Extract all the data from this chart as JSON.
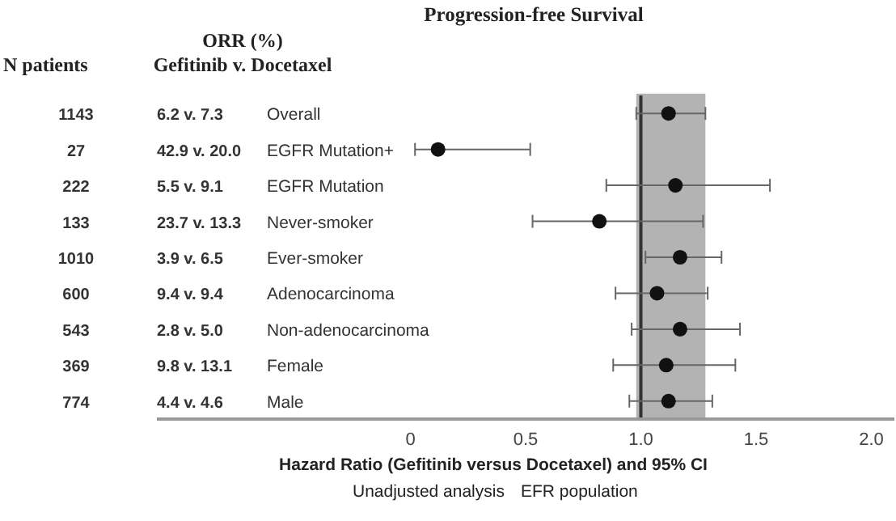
{
  "chart_data": {
    "type": "scatter",
    "orientation": "horizontal",
    "title": "Progression-free Survival",
    "xlabel": "Hazard Ratio (Gefitinib versus Docetaxel) and 95% CI",
    "categories": [
      "Overall",
      "EGFR Mutation+",
      "EGFR Mutation",
      "Never-smoker",
      "Ever-smoker",
      "Adenocarcinoma",
      "Non-adenocarcinoma",
      "Female",
      "Male"
    ],
    "values": [
      1.12,
      0.12,
      1.15,
      0.82,
      1.17,
      1.07,
      1.17,
      1.11,
      1.12
    ],
    "errors": [
      [
        0.98,
        1.28
      ],
      [
        0.02,
        0.52
      ],
      [
        0.85,
        1.56
      ],
      [
        0.53,
        1.27
      ],
      [
        1.02,
        1.35
      ],
      [
        0.89,
        1.29
      ],
      [
        0.96,
        1.43
      ],
      [
        0.88,
        1.41
      ],
      [
        0.95,
        1.31
      ]
    ],
    "color": "#111111",
    "marker": "circle",
    "xlim": [
      -1.1,
      2.1
    ],
    "xticks": [
      {
        "value": 0,
        "label": "0"
      },
      0.5,
      {
        "value": 1,
        "label": "1.0"
      },
      1.5,
      {
        "value": 2,
        "label": "2.0"
      }
    ],
    "ref_lines": [
      {
        "axis": "x",
        "value": 1,
        "color": "#333333"
      }
    ],
    "bands": [
      {
        "axis": "x",
        "from": 0.98,
        "to": 1.28,
        "color": "#b3b3b3"
      }
    ],
    "annotations": [
      "N patients",
      "ORR (%)",
      "Gefitinib v. Docetaxel",
      "1143",
      "27",
      "222",
      "133",
      "1010",
      "600",
      "543",
      "369",
      "774",
      "6.2 v. 7.3",
      "42.9 v. 20.0",
      "5.5 v. 9.1",
      "23.7 v. 13.3",
      "3.9 v. 6.5",
      "9.4 v. 9.4",
      "2.8 v. 5.0",
      "9.8 v. 13.1",
      "4.4 v. 4.6",
      "Unadjusted analysis",
      "EFR population"
    ]
  }
}
